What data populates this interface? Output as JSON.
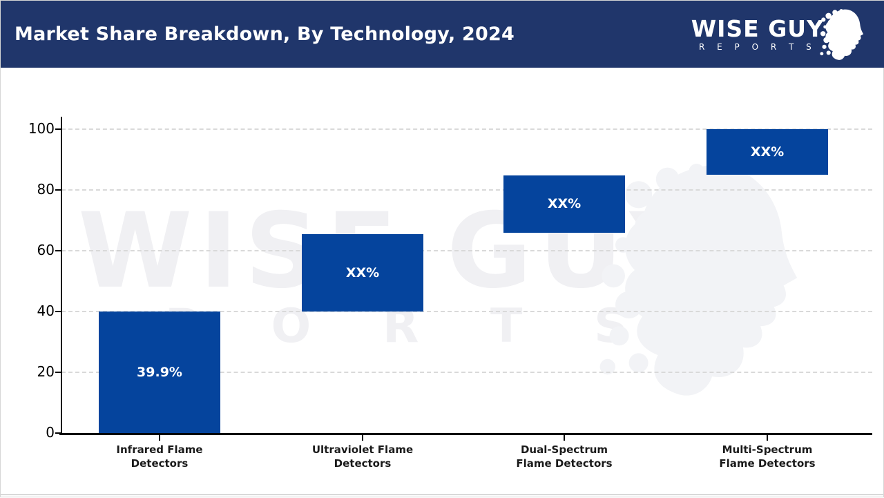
{
  "header": {
    "title": "Market Share Breakdown, By Technology, 2024",
    "logo": {
      "wordmark": "WISE GUY",
      "subtext": "R E P O R T S"
    }
  },
  "watermark": {
    "line1": "WISE GUY",
    "line2": "P O R T S"
  },
  "chart_data": {
    "type": "bar",
    "subtype": "floating-waterfall",
    "title": "Market Share Breakdown, By Technology, 2024",
    "categories": [
      "Infrared Flame\nDetectors",
      "Ultraviolet Flame\nDetectors",
      "Dual-Spectrum\nFlame Detectors",
      "Multi-Spectrum\nFlame Detectors"
    ],
    "segments": [
      {
        "label": "39.9%",
        "start": 0,
        "end": 39.9
      },
      {
        "label": "XX%",
        "start": 40,
        "end": 65.5
      },
      {
        "label": "XX%",
        "start": 66,
        "end": 84.8
      },
      {
        "label": "XX%",
        "start": 85,
        "end": 100
      }
    ],
    "ylabel": "",
    "xlabel": "",
    "yticks": [
      0,
      20,
      40,
      60,
      80,
      100
    ],
    "ylim": [
      0,
      104
    ],
    "grid": "horizontal-dashed",
    "legend": "none"
  },
  "colors": {
    "header_bg": "#20366b",
    "bar": "#05449d",
    "bar_label": "#ffffff",
    "grid": "#d9d9d9",
    "axis": "#000000",
    "watermark": "#f0f0f3"
  }
}
